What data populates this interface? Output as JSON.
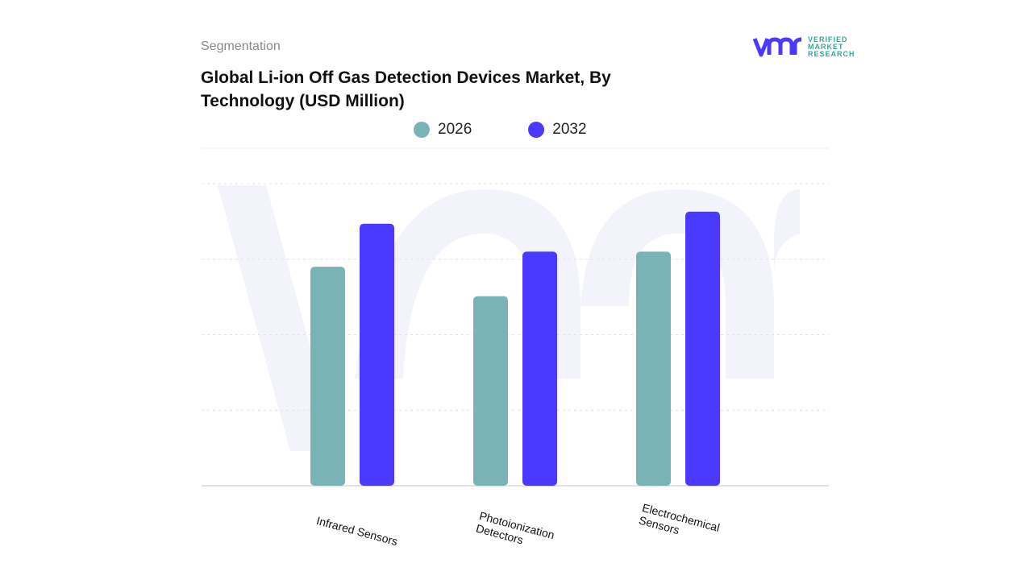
{
  "header": {
    "segment": "Segmentation",
    "title": "Global Li-ion Off Gas Detection Devices Market, By Technology (USD Million)"
  },
  "logo": {
    "line1": "VERIFIED",
    "line2": "MARKET",
    "line3": "RESEARCH",
    "mark": "vmr"
  },
  "colors": {
    "2026": "#7ab3b6",
    "2032": "#4a3aff",
    "grid": "#e2e2e2",
    "watermark": "#f3f4fb"
  },
  "chart_data": {
    "type": "bar",
    "title": "Global Li-ion Off Gas Detection Devices Market, By Technology (USD Million)",
    "categories": [
      "Infrared Sensors",
      "Photoionization Detectors",
      "Electrochemical Sensors"
    ],
    "series": [
      {
        "name": "2026",
        "values": [
          2.9,
          2.51,
          3.1
        ]
      },
      {
        "name": "2032",
        "values": [
          3.47,
          3.1,
          3.63
        ]
      }
    ],
    "ylim": [
      0,
      4
    ],
    "grid": true,
    "legend": "top-center",
    "xlabel": "",
    "ylabel": ""
  }
}
